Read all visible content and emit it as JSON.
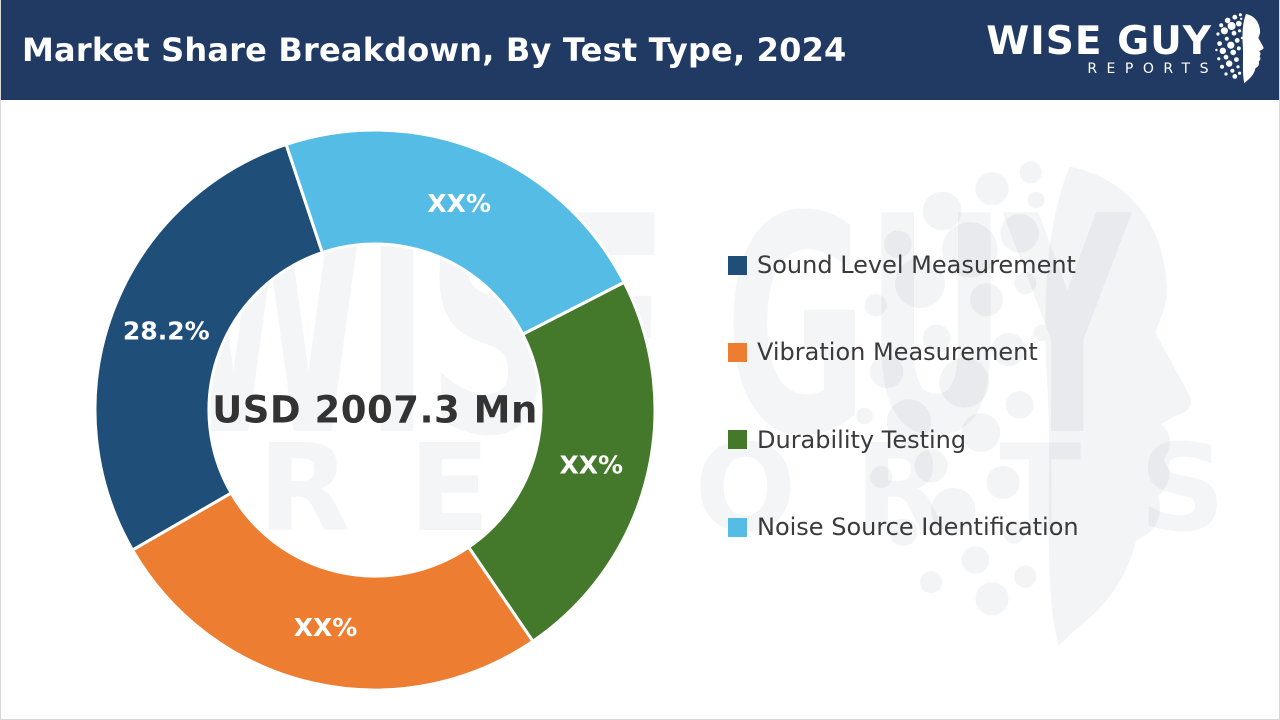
{
  "header": {
    "title": "Market Share Breakdown, By Test Type, 2024",
    "logo": {
      "name": "WISE GUY REPORTS",
      "line1": "WISE GUY",
      "line2": "REPORTS"
    }
  },
  "chart_data": {
    "type": "pie",
    "subtype": "donut",
    "title": "Market Share Breakdown, By Test Type, 2024",
    "center_label": "USD 2007.3 Mn",
    "start_angle_deg": 108.5,
    "direction": "counterclockwise",
    "inner_radius_ratio": 0.593,
    "legend_position": "right",
    "label_radius_ratio": 0.797,
    "segments": [
      {
        "label": "Sound Level Measurement",
        "value_pct": 28.2,
        "display": "28.2%",
        "color": "#1F4E79"
      },
      {
        "label": "Vibration Measurement",
        "value_pct": 26.2,
        "display": "XX%",
        "color": "#ED7D31"
      },
      {
        "label": "Durability Testing",
        "value_pct": 23.0,
        "display": "XX%",
        "color": "#44792B"
      },
      {
        "label": "Noise Source Identification",
        "value_pct": 22.6,
        "display": "XX%",
        "color": "#55BCE6"
      }
    ]
  },
  "watermark": {
    "line1": "WISE GUY",
    "line2": "REPORTS"
  },
  "colors": {
    "header_bg": "#203A64",
    "canvas_bg": "#FFFFFF",
    "frame_border": "#D7D7D7",
    "center_text": "#333333",
    "legend_text": "#3A3A3A",
    "segment_label_text": "#FFFFFF"
  }
}
